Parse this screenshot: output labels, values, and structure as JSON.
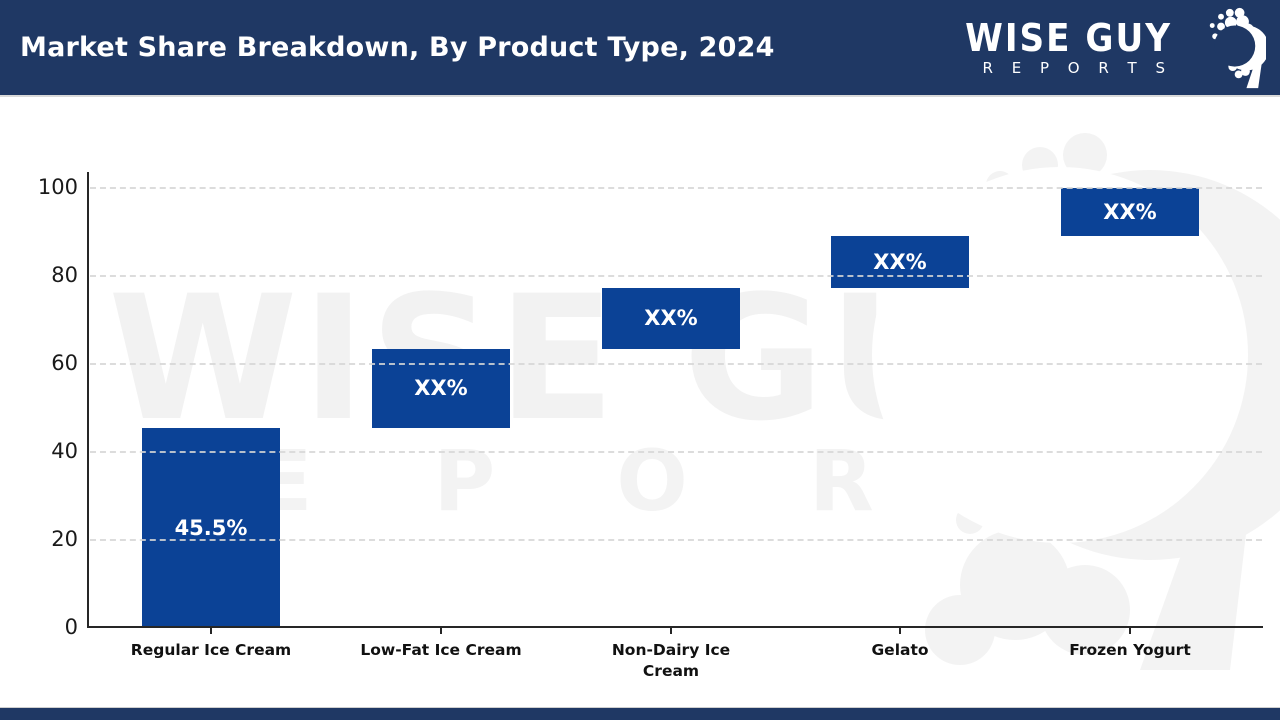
{
  "header": {
    "title": "Market Share Breakdown, By Product Type, 2024",
    "logo": {
      "line1": "WISE GUY",
      "line2": "R E P O R T S"
    }
  },
  "watermark": {
    "line1": "WISE GUY",
    "line2": "E P O R T S"
  },
  "colors": {
    "header_bg": "#1F3864",
    "bar_fill": "#0B4296",
    "bar_label_text": "#ffffff",
    "axis": "#262626",
    "gridline": "#d6d6d6",
    "watermark": "#f2f2f2",
    "footer_bg": "#1F3864"
  },
  "chart_data": {
    "type": "bar",
    "variant": "waterfall-stacked-share",
    "title": "Market Share Breakdown, By Product Type, 2024",
    "xlabel": "",
    "ylabel": "",
    "ylim": [
      0,
      100
    ],
    "yticks": [
      0,
      20,
      40,
      60,
      80,
      100
    ],
    "grid": "horizontal-dashed",
    "legend": "none",
    "categories": [
      "Regular Ice Cream",
      "Low-Fat Ice Cream",
      "Non-Dairy Ice Cream",
      "Gelato",
      "Frozen Yogurt"
    ],
    "segments": [
      {
        "category": "Regular Ice Cream",
        "start": 0,
        "end": 45.5,
        "value": 45.5,
        "label": "45.5%"
      },
      {
        "category": "Low-Fat Ice Cream",
        "start": 45.5,
        "end": 63.5,
        "value": 18.0,
        "label": "XX%"
      },
      {
        "category": "Non-Dairy Ice Cream",
        "start": 63.5,
        "end": 77.3,
        "value": 13.8,
        "label": "XX%"
      },
      {
        "category": "Gelato",
        "start": 77.3,
        "end": 89.0,
        "value": 11.7,
        "label": "XX%"
      },
      {
        "category": "Frozen Yogurt",
        "start": 89.0,
        "end": 100.0,
        "value": 11.0,
        "label": "XX%"
      }
    ]
  }
}
